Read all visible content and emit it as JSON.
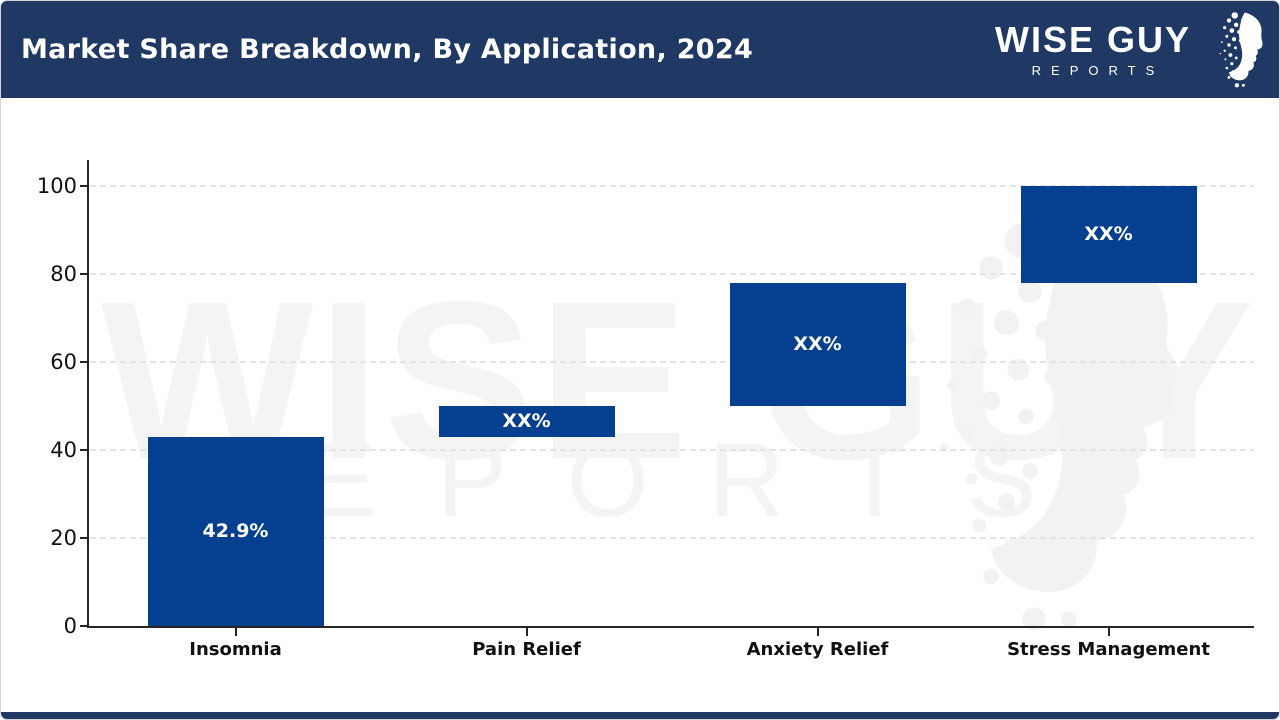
{
  "header": {
    "title": "Market Share Breakdown, By Application, 2024"
  },
  "brand": {
    "line1": "WISE GUY",
    "line2": "REPORTS"
  },
  "watermark": {
    "line1": "WISE GUY",
    "line2": "REPORTS"
  },
  "chart_data": {
    "type": "bar",
    "variant": "waterfall",
    "title": "Market Share Breakdown, By Application, 2024",
    "categories": [
      "Insomnia",
      "Pain Relief",
      "Anxiety Relief",
      "Stress Management"
    ],
    "series": [
      {
        "name": "Market Share (%)",
        "segments": [
          {
            "start": 0,
            "end": 42.9,
            "label": "42.9%"
          },
          {
            "start": 42.9,
            "end": 50,
            "label": "XX%"
          },
          {
            "start": 50,
            "end": 78,
            "label": "XX%"
          },
          {
            "start": 78,
            "end": 100,
            "label": "XX%"
          }
        ]
      }
    ],
    "xlabel": "",
    "ylabel": "",
    "ylim": [
      0,
      105
    ],
    "yticks": [
      0,
      20,
      40,
      60,
      80,
      100
    ],
    "grid": "horizontal-dashed",
    "legend": "none",
    "bar_color": "#04408f",
    "bar_label_color": "#ffffff",
    "axis_color": "#262626",
    "grid_color": "#e2e2e2"
  }
}
